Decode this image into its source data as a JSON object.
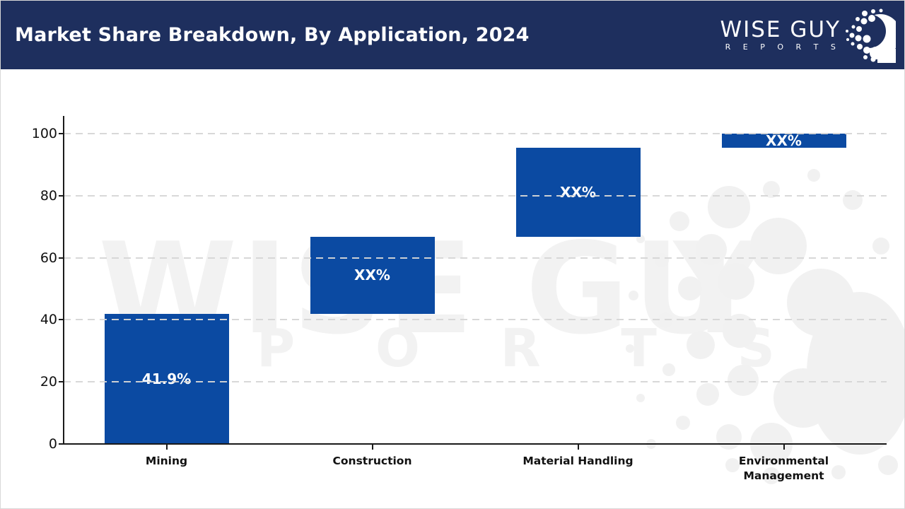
{
  "header": {
    "title": "Market Share Breakdown, By Application, 2024",
    "bg_color": "#1e2f5e",
    "logo": {
      "brand": "WISE GUY",
      "sub": "R E P O R T S"
    }
  },
  "watermark": {
    "line1": "WISE GU",
    "line1_tail": "Y",
    "line2": "P O R T S",
    "color": "#f2f2f2"
  },
  "chart_data": {
    "type": "bar",
    "subtype": "waterfall",
    "title": "Market Share Breakdown, By Application, 2024",
    "xlabel": "",
    "ylabel": "",
    "ylim": [
      0,
      100
    ],
    "yticks": [
      0,
      20,
      40,
      60,
      80,
      100
    ],
    "grid": "horizontal-dashed, drawn over bars",
    "legend": "none",
    "bar_color": "#0b4aa2",
    "bar_label_color": "#ffffff",
    "overflow_label_color": "#1b3866",
    "axis_color": "#1a1a1a",
    "grid_color": "#d6d6d6",
    "categories": [
      "Mining",
      "Construction",
      "Material Handling",
      "Environmental Management"
    ],
    "segments": [
      {
        "category": "Mining",
        "start": 0,
        "end": 41.9,
        "value_label": "41.9%"
      },
      {
        "category": "Construction",
        "start": 41.9,
        "end": 66.8,
        "value_label": "XX%"
      },
      {
        "category": "Material Handling",
        "start": 66.8,
        "end": 95.5,
        "value_label": "XX%"
      },
      {
        "category": "Environmental Management",
        "start": 95.5,
        "end": 100,
        "value_label": "XX%"
      }
    ]
  }
}
